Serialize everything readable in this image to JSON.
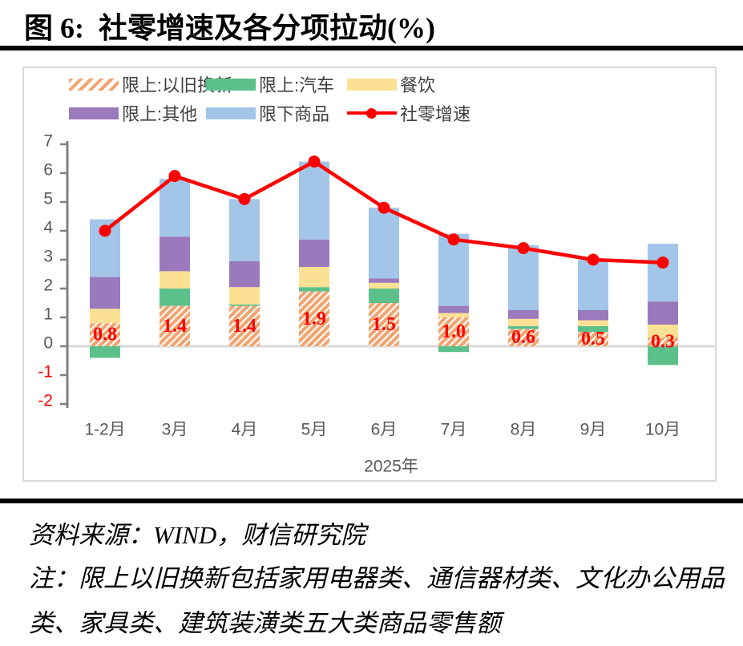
{
  "page": {
    "title": "图 6:  社零增速及各分项拉动(%)",
    "source_line": "资料来源：WIND，财信研究院",
    "note_line": "注：限上以旧换新包括家用电器类、通信器材类、文化办公用品类、家具类、建筑装潢类五大类商品零售额"
  },
  "colors": {
    "accent_red": "#FF0000",
    "axis_gray": "#808080",
    "grid_gray": "#D9D9D9",
    "tick_label_gray": "#595959",
    "legend_text_gray": "#404040",
    "frame_border": "#D9D9D9"
  },
  "legend": {
    "items": [
      {
        "key": "trade_in",
        "label": "限上:以旧换新",
        "swatch": "hatched"
      },
      {
        "key": "auto",
        "label": "限上:汽车",
        "swatch": "solid"
      },
      {
        "key": "catering",
        "label": "餐饮",
        "swatch": "solid"
      },
      {
        "key": "other",
        "label": "限上:其他",
        "swatch": "solid"
      },
      {
        "key": "below_limit",
        "label": "限下商品",
        "swatch": "solid"
      },
      {
        "key": "growth",
        "label": "社零增速",
        "swatch": "line"
      }
    ]
  },
  "chart_data": {
    "type": "bar",
    "subtype": "stacked-bars-with-line",
    "categories": [
      "1-2月",
      "3月",
      "4月",
      "5月",
      "6月",
      "7月",
      "8月",
      "9月",
      "10月"
    ],
    "x_axis_title": "2025年",
    "ylim": [
      -2,
      7
    ],
    "yticks": [
      7,
      6,
      5,
      4,
      3,
      2,
      1,
      0,
      -1,
      -2
    ],
    "grid": "zero-line-only",
    "legend_position": "top",
    "series": [
      {
        "name": "限上:以旧换新",
        "type": "bar",
        "style": "hatched",
        "color": "#F2A470",
        "values": [
          0.8,
          1.4,
          1.4,
          1.9,
          1.5,
          1.0,
          0.6,
          0.5,
          0.3
        ]
      },
      {
        "name": "限上:汽车",
        "type": "bar",
        "style": "solid",
        "color": "#5CC08A",
        "values": [
          -0.4,
          0.6,
          0.05,
          0.15,
          0.5,
          -0.2,
          0.1,
          0.2,
          -0.65
        ]
      },
      {
        "name": "餐饮",
        "type": "bar",
        "style": "solid",
        "color": "#FCE093",
        "values": [
          0.5,
          0.6,
          0.6,
          0.7,
          0.2,
          0.15,
          0.25,
          0.2,
          0.45
        ]
      },
      {
        "name": "限上:其他",
        "type": "bar",
        "style": "solid",
        "color": "#9B79BD",
        "values": [
          1.1,
          1.2,
          0.9,
          0.95,
          0.15,
          0.25,
          0.3,
          0.35,
          0.8
        ]
      },
      {
        "name": "限下商品",
        "type": "bar",
        "style": "solid",
        "color": "#A2C5E8",
        "values": [
          2.0,
          2.0,
          2.15,
          2.7,
          2.45,
          2.5,
          2.25,
          1.75,
          2.0
        ]
      },
      {
        "name": "社零增速",
        "type": "line",
        "color": "#FF0000",
        "marker": "circle",
        "values": [
          4.0,
          5.9,
          5.1,
          6.4,
          4.8,
          3.7,
          3.4,
          3.0,
          2.9
        ]
      }
    ],
    "bar_value_labels": {
      "series": "限上:以旧换新",
      "labels": [
        "0.8",
        "1.4",
        "1.4",
        "1.9",
        "1.5",
        "1.0",
        "0.6",
        "0.5",
        "0.3"
      ],
      "color": "#FF0000"
    }
  }
}
